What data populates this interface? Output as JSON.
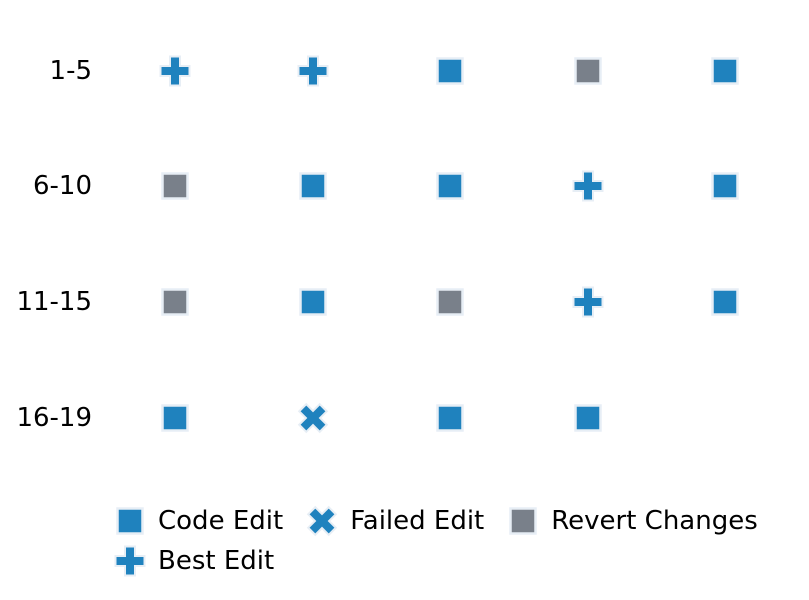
{
  "chart_data": {
    "type": "scatter",
    "background": "#ffffff",
    "grid": false,
    "legend_position": "bottom-left",
    "row_labels": [
      "1-5",
      "6-10",
      "11-15",
      "16-19"
    ],
    "points": [
      {
        "row": "1-5",
        "markers": [
          "best_edit",
          "best_edit",
          "code_edit",
          "revert_changes",
          "code_edit"
        ]
      },
      {
        "row": "6-10",
        "markers": [
          "revert_changes",
          "code_edit",
          "code_edit",
          "best_edit",
          "code_edit"
        ]
      },
      {
        "row": "11-15",
        "markers": [
          "revert_changes",
          "code_edit",
          "revert_changes",
          "best_edit",
          "code_edit"
        ]
      },
      {
        "row": "16-19",
        "markers": [
          "code_edit",
          "failed_edit",
          "code_edit",
          "code_edit"
        ]
      }
    ],
    "marker_styles": {
      "code_edit": {
        "shape": "square",
        "color": "#1f82be"
      },
      "failed_edit": {
        "shape": "x",
        "color": "#1f82be"
      },
      "revert_changes": {
        "shape": "square",
        "color": "#79808a"
      },
      "best_edit": {
        "shape": "plus",
        "color": "#1f82be"
      }
    },
    "colors": {
      "blue": "#1f82be",
      "gray": "#79808a",
      "marker_edge": "#e7eef5",
      "text": "#000000"
    },
    "legend": [
      {
        "label": "Code Edit",
        "type": "code_edit"
      },
      {
        "label": "Failed Edit",
        "type": "failed_edit"
      },
      {
        "label": "Revert Changes",
        "type": "revert_changes"
      },
      {
        "label": "Best Edit",
        "type": "best_edit"
      }
    ]
  }
}
